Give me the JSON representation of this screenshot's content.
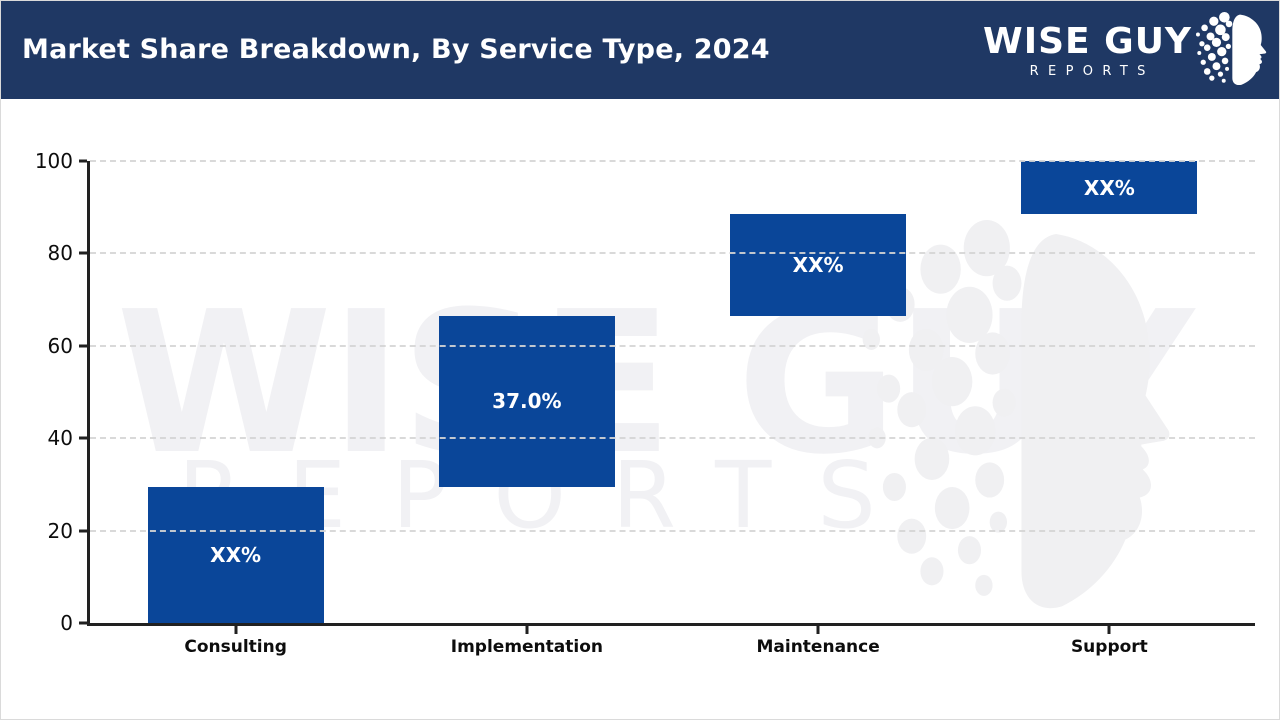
{
  "header": {
    "title": "Market Share Breakdown, By Service Type, 2024",
    "logo": {
      "name": "WISE GUY",
      "tagline": "REPORTS"
    }
  },
  "watermark": {
    "big_text": "WISE GUY",
    "sub_text": "REPORTS"
  },
  "colors": {
    "header_bg": "#1f3864",
    "bar_blue": "#0a4699",
    "axis": "#212121",
    "gridline": "#d5d5d5",
    "bar_label": "#ffffff",
    "watermark": "#f1f1f4"
  },
  "chart_data": {
    "type": "waterfall",
    "title": "Market Share Breakdown, By Service Type, 2024",
    "categories": [
      "Consulting",
      "Implementation",
      "Maintenance",
      "Support"
    ],
    "segments": [
      {
        "category": "Consulting",
        "start": 0,
        "end": 29.5,
        "value_label": "XX%"
      },
      {
        "category": "Implementation",
        "start": 29.5,
        "end": 66.5,
        "value_label": "37.0%"
      },
      {
        "category": "Maintenance",
        "start": 66.5,
        "end": 88.5,
        "value_label": "XX%"
      },
      {
        "category": "Support",
        "start": 88.5,
        "end": 100,
        "value_label": "XX%"
      }
    ],
    "segment_heights": [
      29.5,
      37.0,
      22.0,
      11.5
    ],
    "ylim": [
      0,
      100
    ],
    "yticks": [
      0,
      20,
      40,
      60,
      80,
      100
    ],
    "xlabel": "",
    "ylabel": "",
    "grid": "horizontal-dashed",
    "legend": "none",
    "bar_color": "#0a4699"
  }
}
